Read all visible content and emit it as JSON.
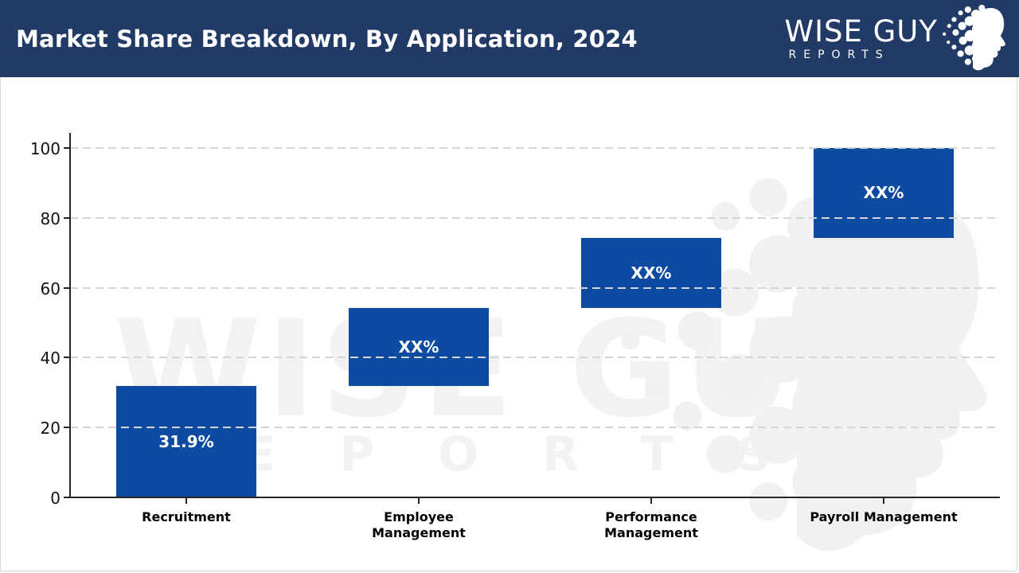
{
  "header": {
    "title": "Market Share Breakdown, By Application, 2024",
    "logo_line1": "WISE GUY",
    "logo_line2": "REPORTS",
    "bg_color": "#213a66"
  },
  "watermark": {
    "line1": "WISE GUY",
    "line2": "REPORTS"
  },
  "chart_data": {
    "type": "bar",
    "subtype": "waterfall",
    "title": "Market Share Breakdown, By Application, 2024",
    "categories": [
      "Recruitment",
      "Employee Management",
      "Performance Management",
      "Payroll Management"
    ],
    "categories_display": [
      "Recruitment",
      "Employee\nManagement",
      "Performance\nManagement",
      "Payroll Management"
    ],
    "series": [
      {
        "name": "Market share (%)",
        "segments": [
          {
            "category": "Recruitment",
            "start": 0,
            "end": 31.9,
            "label": "31.9%"
          },
          {
            "category": "Employee Management",
            "start": 31.9,
            "end": 54.3,
            "label": "XX%"
          },
          {
            "category": "Performance Management",
            "start": 54.3,
            "end": 74.3,
            "label": "XX%"
          },
          {
            "category": "Payroll Management",
            "start": 74.3,
            "end": 100,
            "label": "XX%"
          }
        ]
      }
    ],
    "xlabel": "",
    "ylabel": "",
    "ylim": [
      0,
      100
    ],
    "yticks": [
      0,
      20,
      40,
      60,
      80,
      100
    ],
    "grid": "horizontal-dashed",
    "legend": "none",
    "bar_color": "#0c4ba1",
    "bar_label_color": "#ffffff",
    "gridline_color": "#d4d4d4",
    "axis_color": "#262626"
  }
}
